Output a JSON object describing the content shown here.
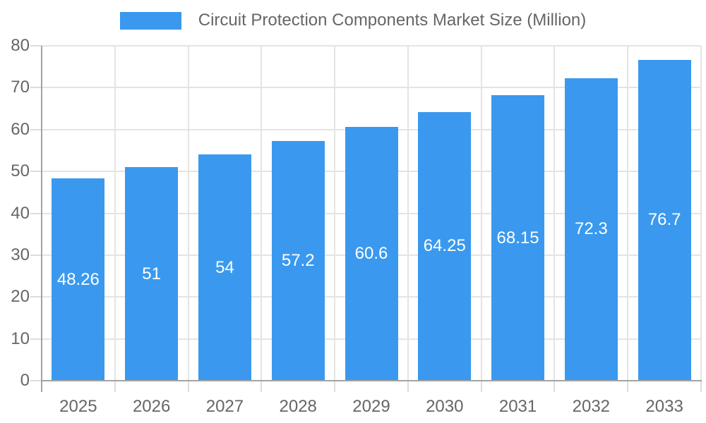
{
  "legend": {
    "label": "Circuit Protection Components Market Size (Million)"
  },
  "chart_data": {
    "type": "bar",
    "title": "Circuit Protection Components Market Size (Million)",
    "categories": [
      "2025",
      "2026",
      "2027",
      "2028",
      "2029",
      "2030",
      "2031",
      "2032",
      "2033"
    ],
    "values": [
      48.26,
      51,
      54,
      57.2,
      60.6,
      64.25,
      68.15,
      72.3,
      76.7
    ],
    "xlabel": "",
    "ylabel": "",
    "ylim": [
      0,
      80
    ],
    "ytick_step": 10,
    "grid": true,
    "legend_position": "top-center",
    "value_label_position": "inside-center",
    "colors": {
      "bar": "#3A99EE",
      "value_label": "#FFFFFF",
      "axis_text": "#666666",
      "legend_text": "#666666",
      "grid_line": "#E4E4E4",
      "tick_mark": "#DCDCDC",
      "axis_line": "#A3A3A3",
      "background": "#FFFFFF"
    }
  }
}
